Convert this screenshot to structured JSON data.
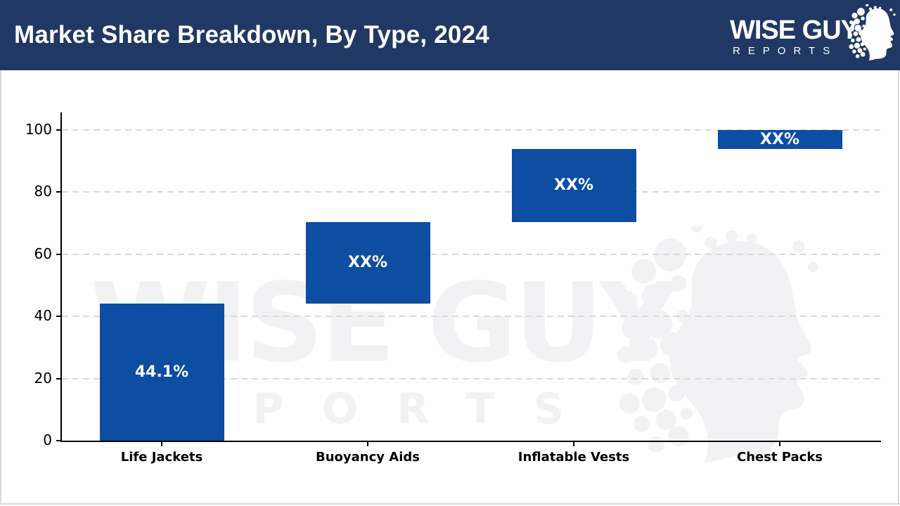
{
  "header": {
    "title": "Market Share Breakdown, By Type, 2024",
    "bg_color": "#213864",
    "logo": {
      "line1": "WISE GUY",
      "line2": "REPORTS"
    }
  },
  "watermark": {
    "line1": "WISE GUY",
    "line2": "REPORTS"
  },
  "chart_data": {
    "type": "bar",
    "subtype": "waterfall",
    "title": "Market Share Breakdown, By Type, 2024",
    "categories": [
      "Life Jackets",
      "Buoyancy Aids",
      "Inflatable Vests",
      "Chest Packs"
    ],
    "segments": [
      {
        "category": "Life Jackets",
        "start": 0,
        "end": 44.1,
        "label": "44.1%"
      },
      {
        "category": "Buoyancy Aids",
        "start": 44.1,
        "end": 70.3,
        "label": "XX%"
      },
      {
        "category": "Inflatable Vests",
        "start": 70.3,
        "end": 93.8,
        "label": "XX%"
      },
      {
        "category": "Chest Packs",
        "start": 93.8,
        "end": 100,
        "label": "XX%"
      }
    ],
    "xlabel": "",
    "ylabel": "",
    "ylim": [
      0,
      105.5
    ],
    "yticks": [
      0,
      20,
      40,
      60,
      80,
      100
    ],
    "grid": "horizontal-dashed",
    "legend": "none",
    "bar_color": "#0d4da2",
    "bar_label_color": "#ffffff",
    "grid_color": "#d9d9d9"
  }
}
